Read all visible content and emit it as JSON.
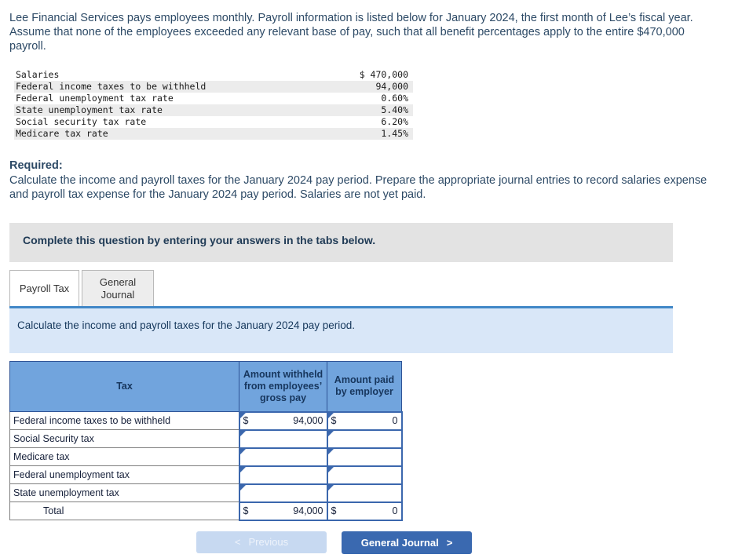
{
  "intro": "Lee Financial Services pays employees monthly. Payroll information is listed below for January 2024, the first month of Lee’s fiscal year. Assume that none of the employees exceeded any relevant base of pay, such that all benefit percentages apply to the entire $470,000 payroll.",
  "payroll_info": {
    "rows": [
      {
        "label": "Salaries",
        "value": "$ 470,000"
      },
      {
        "label": "Federal income taxes to be withheld",
        "value": "94,000"
      },
      {
        "label": "Federal unemployment tax rate",
        "value": "0.60%"
      },
      {
        "label": "State unemployment tax rate",
        "value": "5.40%"
      },
      {
        "label": "Social security tax rate",
        "value": "6.20%"
      },
      {
        "label": "Medicare tax rate",
        "value": "1.45%"
      }
    ]
  },
  "required_heading": "Required:",
  "required_text": "Calculate the income and payroll taxes for the January 2024 pay period. Prepare the appropriate journal entries to record salaries expense and payroll tax expense for the January 2024 pay period. Salaries are not yet paid.",
  "instruction_banner": "Complete this question by entering your answers in the tabs below.",
  "tabs": [
    {
      "label": "Payroll Tax"
    },
    {
      "label": "General Journal"
    }
  ],
  "tab_instruction": "Calculate the income and payroll taxes for the January 2024 pay period.",
  "answer_table": {
    "headers": [
      "Tax",
      "Amount withheld from employees’ gross pay",
      "Amount paid by employer"
    ],
    "rows": [
      {
        "label": "Federal income taxes to be withheld",
        "withheld_currency": "$",
        "withheld": "94,000",
        "employer_currency": "$",
        "employer": "0"
      },
      {
        "label": "Social Security tax",
        "withheld_currency": "",
        "withheld": "",
        "employer_currency": "",
        "employer": ""
      },
      {
        "label": "Medicare tax",
        "withheld_currency": "",
        "withheld": "",
        "employer_currency": "",
        "employer": ""
      },
      {
        "label": "Federal unemployment tax",
        "withheld_currency": "",
        "withheld": "",
        "employer_currency": "",
        "employer": ""
      },
      {
        "label": "State unemployment tax",
        "withheld_currency": "",
        "withheld": "",
        "employer_currency": "",
        "employer": ""
      }
    ],
    "total": {
      "label": "Total",
      "currency": "$",
      "withheld": "94,000",
      "employer": "0"
    }
  },
  "buttons": {
    "previous_icon": "<",
    "previous_label": "Previous",
    "next_label": "General Journal",
    "next_icon": ">"
  },
  "colors": {
    "header_blue": "#71a4dd",
    "cell_border_blue": "#3b67ad",
    "tab_line_blue": "#4187c7",
    "panel_blue": "#d9e7f8",
    "banner_gray": "#e3e3e3",
    "primary_button_blue": "#3a69b0",
    "secondary_button_blue": "#c7d9f1",
    "body_text": "#2d4a66"
  }
}
